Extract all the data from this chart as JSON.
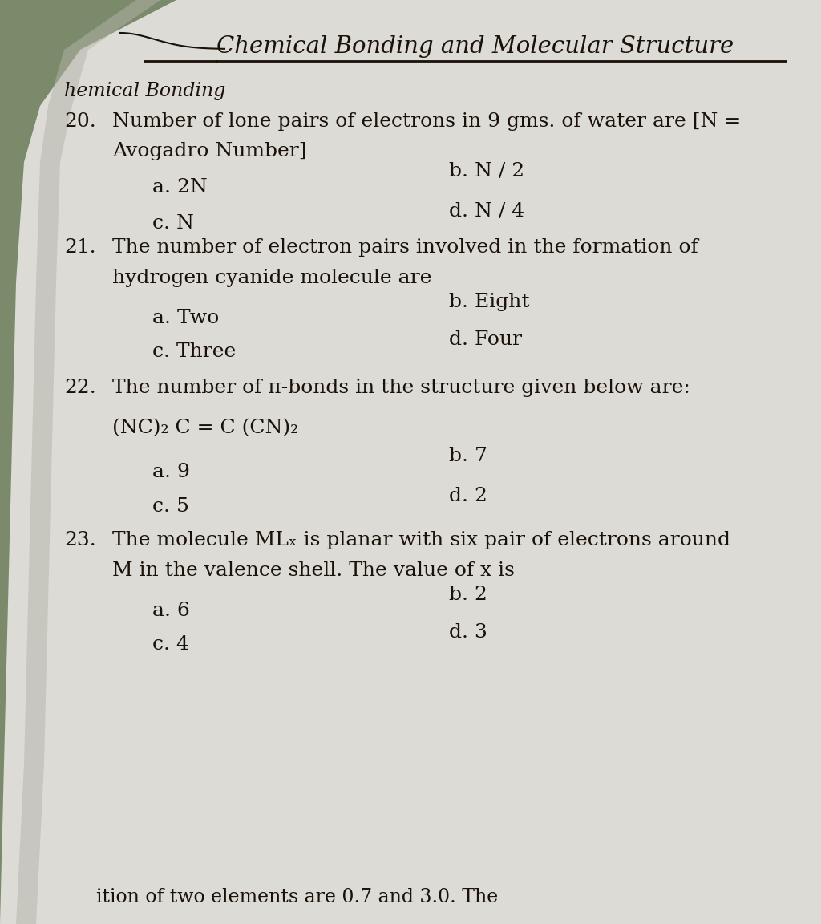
{
  "bg_color_outer": "#7a8a6a",
  "bg_color_page": "#dcdbd5",
  "text_color": "#1a1208",
  "title": "Chemical Bonding and Molecular Structure",
  "q20_num": "20.",
  "q20_line1": "Number of lone pairs of electrons in 9 gms. of water are [N =",
  "q20_line2": "Avogadro Number]",
  "q20_a": "a. 2N",
  "q20_b": "b. N / 2",
  "q20_c": "c. N",
  "q20_d": "d. N / 4",
  "q21_num": "21.",
  "q21_line1": "The number of electron pairs involved in the formation of",
  "q21_line2": "hydrogen cyanide molecule are",
  "q21_a": "a. Two",
  "q21_b": "b. Eight",
  "q21_c": "c. Three",
  "q21_d": "d. Four",
  "q22_num": "22.",
  "q22_line1": "The number of π-bonds in the structure given below are:",
  "q22_formula": "(NC)₂ C = C (CN)₂",
  "q22_a": "a. 9",
  "q22_b": "b. 7",
  "q22_c": "c. 5",
  "q22_d": "d. 2",
  "q23_num": "23.",
  "q23_line1": "The molecule MLₓ is planar with six pair of electrons around",
  "q23_line2": "M in the valence shell. The value of x is",
  "q23_a": "a. 6",
  "q23_b": "b. 2",
  "q23_c": "c. 4",
  "q23_d": "d. 3",
  "footer": "        ition of two elements are 0.7 and 3.0. The"
}
